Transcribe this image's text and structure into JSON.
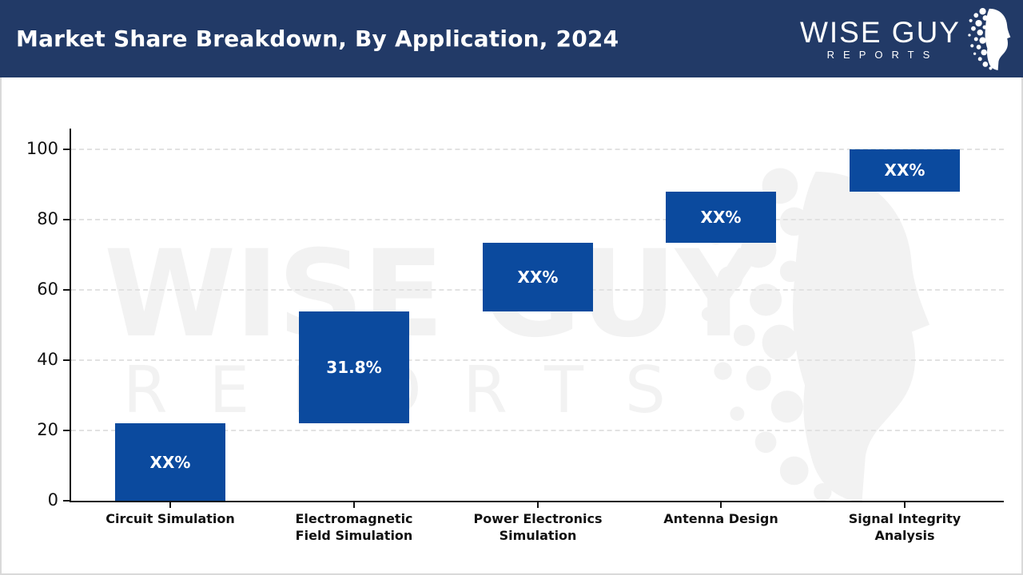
{
  "header": {
    "title": "Market Share Breakdown, By Application, 2024",
    "logo": {
      "name": "WISE GUY",
      "subtitle": "REPORTS"
    }
  },
  "watermark": {
    "line1": "WISE GUY",
    "line2": "REPORTS"
  },
  "colors": {
    "header_bg": "#223a67",
    "bar": "#0b4a9e",
    "bar_label_text": "#ffffff",
    "axis": "#141414",
    "gridline": "#e2e2e2",
    "watermark": "#f2f2f2"
  },
  "chart_data": {
    "type": "bar",
    "subtype": "waterfall",
    "title": "Market Share Breakdown, By Application, 2024",
    "categories": [
      "Circuit Simulation",
      "Electromagnetic Field Simulation",
      "Power Electronics Simulation",
      "Antenna Design",
      "Signal Integrity Analysis"
    ],
    "series": [
      {
        "name": "Market share (%)",
        "segments": [
          {
            "category": "Circuit Simulation",
            "start": 0,
            "end": 22,
            "value_pct": 22,
            "label": "XX%"
          },
          {
            "category": "Electromagnetic Field Simulation",
            "start": 22,
            "end": 53.8,
            "value_pct": 31.8,
            "label": "31.8%"
          },
          {
            "category": "Power Electronics Simulation",
            "start": 53.8,
            "end": 73.5,
            "value_pct": 19.7,
            "label": "XX%"
          },
          {
            "category": "Antenna Design",
            "start": 73.5,
            "end": 88,
            "value_pct": 14.5,
            "label": "XX%"
          },
          {
            "category": "Signal Integrity Analysis",
            "start": 88,
            "end": 100,
            "value_pct": 12,
            "label": "XX%"
          }
        ]
      }
    ],
    "ylim": [
      0,
      100
    ],
    "yticks": [
      0,
      20,
      40,
      60,
      80,
      100
    ],
    "xlabel": "",
    "ylabel": "",
    "grid": "horizontal-dashed",
    "legend": "none"
  }
}
